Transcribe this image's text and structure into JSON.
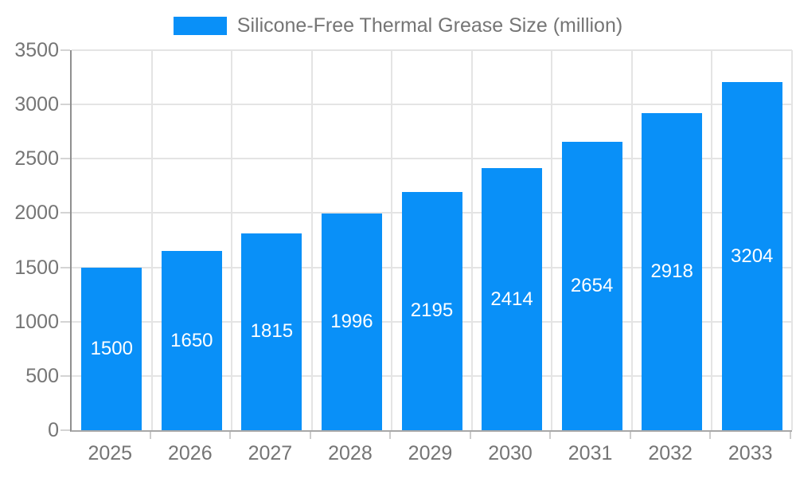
{
  "chart_data": {
    "type": "bar",
    "title": "Silicone-Free Thermal Grease Size (million)",
    "legend": [
      "Silicone-Free Thermal Grease Size (million)"
    ],
    "legend_position": "top-center",
    "categories": [
      "2025",
      "2026",
      "2027",
      "2028",
      "2029",
      "2030",
      "2031",
      "2032",
      "2033"
    ],
    "series": [
      {
        "name": "Silicone-Free Thermal Grease Size (million)",
        "values": [
          1500,
          1650,
          1815,
          1996,
          2195,
          2414,
          2654,
          2918,
          3204
        ]
      }
    ],
    "xlabel": "",
    "ylabel": "",
    "ylim": [
      0,
      3500
    ],
    "ytick_step": 500,
    "yticks": [
      0,
      500,
      1000,
      1500,
      2000,
      2500,
      3000,
      3500
    ],
    "grid": true,
    "bar_value_labels": true,
    "colors": {
      "bar": "#0990f8",
      "value_label": "#ffffff",
      "axis_text": "#757575",
      "gridline": "#e4e4e4",
      "axis_line": "#8f8f8f",
      "background": "#ffffff"
    }
  }
}
